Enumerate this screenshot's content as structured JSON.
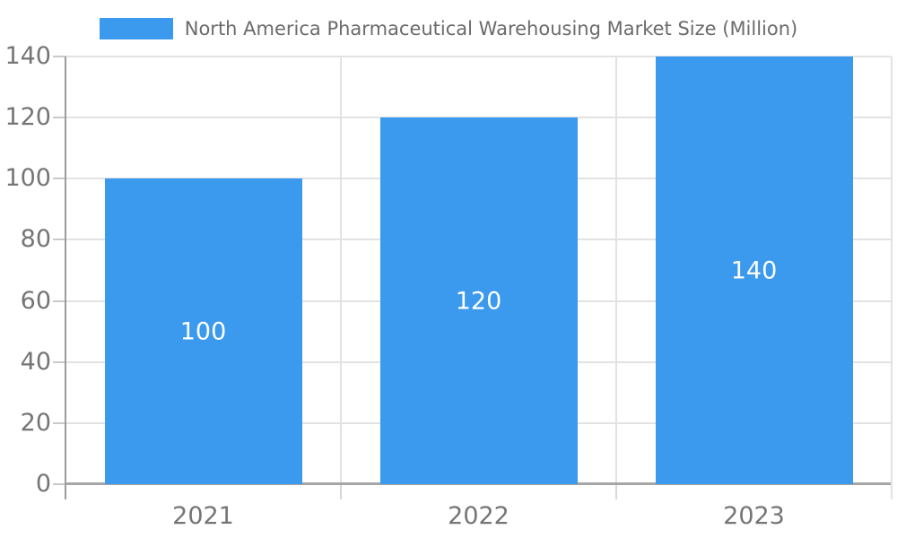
{
  "legend": {
    "label": "North America Pharmaceutical Warehousing Market Size (Million)"
  },
  "chart_data": {
    "type": "bar",
    "title": "North America Pharmaceutical Warehousing Market Size (Million)",
    "categories": [
      "2021",
      "2022",
      "2023"
    ],
    "values": [
      100,
      120,
      140
    ],
    "series": [
      {
        "name": "North America Pharmaceutical Warehousing Market Size (Million)",
        "values": [
          100,
          120,
          140
        ]
      }
    ],
    "data_labels": [
      "100",
      "120",
      "140"
    ],
    "xlabel": "",
    "ylabel": "",
    "ylim": [
      0,
      140
    ],
    "yticks": [
      0,
      20,
      40,
      60,
      80,
      100,
      120,
      140
    ],
    "grid": true,
    "legend_position": "top",
    "colors": {
      "bar": "#3B99EE",
      "grid": "#E2E2E2",
      "axis": "#A6A6A6",
      "y_tick": "#C9C9C9",
      "x_tick": "#D8D8D8",
      "axis_text": "#757575",
      "legend_text": "#6B6B6B",
      "data_label": "#FFFFFF",
      "background": "#FFFFFF"
    }
  }
}
